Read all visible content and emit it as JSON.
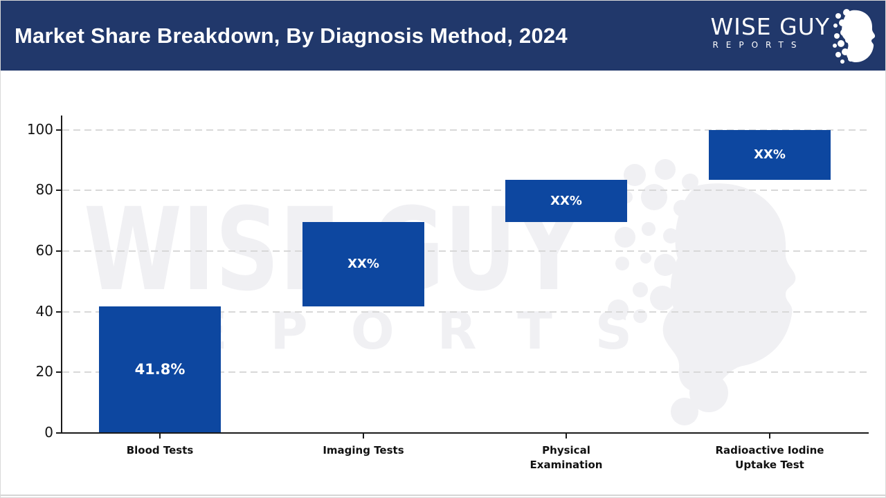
{
  "header": {
    "title": "Market Share Breakdown, By Diagnosis Method, 2024",
    "bg_color": "#21386B",
    "logo": {
      "wordmark": "WISE GUY",
      "subtext": "REPORTS"
    }
  },
  "watermark": {
    "line1": "WISE GUY",
    "line2": "REPORTS"
  },
  "chart_data": {
    "type": "bar",
    "subtype": "waterfall",
    "title": "Market Share Breakdown, By Diagnosis Method, 2024",
    "xlabel": "",
    "ylabel": "",
    "ylim": [
      0,
      100
    ],
    "yticks": [
      0,
      20,
      40,
      60,
      80,
      100
    ],
    "grid": "horizontal-dashed",
    "legend": null,
    "bar_color": "#0D47A0",
    "categories": [
      "Blood Tests",
      "Imaging Tests",
      "Physical Examination",
      "Radioactive Iodine Uptake Test"
    ],
    "category_label_lines": [
      [
        "Blood Tests"
      ],
      [
        "Imaging Tests"
      ],
      [
        "Physical",
        "Examination"
      ],
      [
        "Radioactive Iodine",
        "Uptake Test"
      ]
    ],
    "segments": [
      {
        "category": "Blood Tests",
        "start": 0,
        "end": 41.8,
        "value": 41.8,
        "label": "41.8%"
      },
      {
        "category": "Imaging Tests",
        "start": 41.8,
        "end": 69.5,
        "value": 27.7,
        "label": "XX%"
      },
      {
        "category": "Physical Examination",
        "start": 69.5,
        "end": 83.5,
        "value": 14.0,
        "label": "XX%"
      },
      {
        "category": "Radioactive Iodine Uptake Test",
        "start": 83.5,
        "end": 100,
        "value": 16.5,
        "label": "XX%"
      }
    ]
  }
}
